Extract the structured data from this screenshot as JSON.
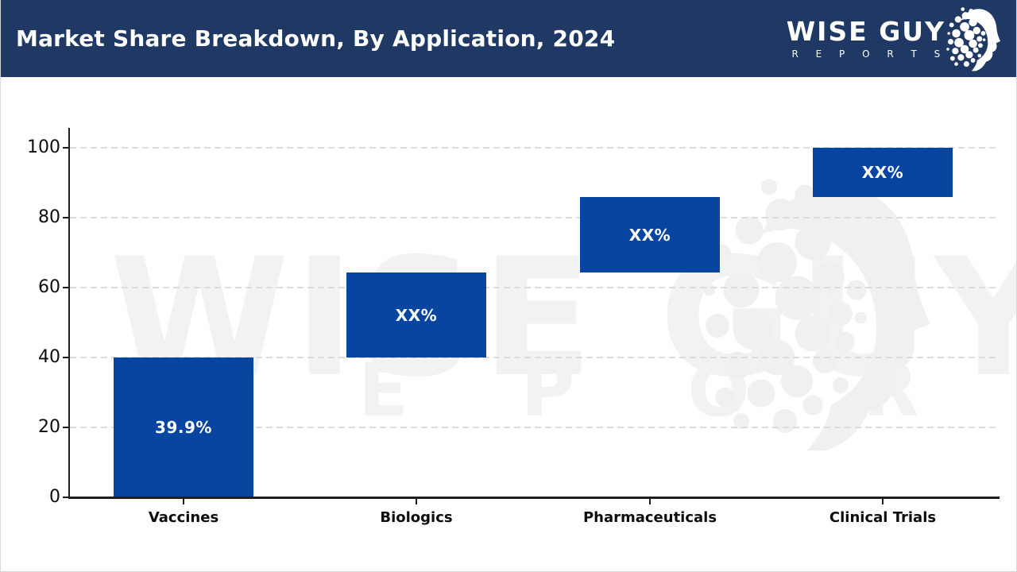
{
  "header": {
    "title": "Market Share Breakdown, By Application, 2024",
    "logo": {
      "line1": "WISE GUY",
      "line2": "R E P O R T S"
    }
  },
  "watermark": {
    "line1": "WISE GUY",
    "line2": "R E P O R T S"
  },
  "colors": {
    "header_bg": "#203864",
    "bar": "#0745a0",
    "grid": "#dcdcdc",
    "axis": "#1f1f1f",
    "watermark": "#f2f2f2"
  },
  "chart_data": {
    "type": "bar",
    "subtype": "waterfall",
    "title": "Market Share Breakdown, By Application, 2024",
    "categories": [
      "Vaccines",
      "Biologics",
      "Pharmaceuticals",
      "Clinical Trials"
    ],
    "segments": [
      {
        "category": "Vaccines",
        "start": 0,
        "end": 39.9,
        "label": "39.9%"
      },
      {
        "category": "Biologics",
        "start": 39.9,
        "end": 64.3,
        "label": "XX%"
      },
      {
        "category": "Pharmaceuticals",
        "start": 64.3,
        "end": 85.9,
        "label": "XX%"
      },
      {
        "category": "Clinical Trials",
        "start": 85.9,
        "end": 100,
        "label": "XX%"
      }
    ],
    "ylim": [
      0,
      106
    ],
    "yticks": [
      0,
      20,
      40,
      60,
      80,
      100
    ],
    "xlabel": "",
    "ylabel": "",
    "grid": "horizontal-dashed",
    "legend": "none"
  }
}
